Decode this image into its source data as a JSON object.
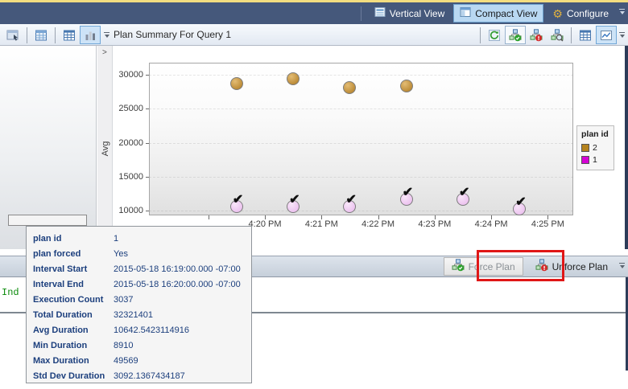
{
  "topbar": {
    "vertical_view_label": "Vertical View",
    "compact_view_label": "Compact View",
    "configure_label": "Configure"
  },
  "toolbar": {
    "title": "Plan Summary For Query 1",
    "left_icons": [
      "results-pane-icon",
      "grid-view-icon",
      "table-view-icon",
      "chart-view-icon"
    ],
    "right_icons": [
      "refresh-icon",
      "force-plan-icon",
      "unforce-plan-icon",
      "compare-plans-icon",
      "grid-results-icon",
      "chart-toggle-icon"
    ]
  },
  "chart_data": {
    "type": "scatter",
    "title": "Plan Summary For Query 1",
    "legend_title": "plan id",
    "legend_position": "right",
    "grid": false,
    "x_axis": {
      "unit": "time of day, minutes from 4:19 PM",
      "range": [
        -1.05,
        6.45
      ],
      "ticks": [
        {
          "pos": 0,
          "label": ""
        },
        {
          "pos": 1,
          "label": "4:20 PM"
        },
        {
          "pos": 2,
          "label": "4:21 PM"
        },
        {
          "pos": 3,
          "label": "4:22 PM"
        },
        {
          "pos": 4,
          "label": "4:23 PM"
        },
        {
          "pos": 5,
          "label": "4:24 PM"
        },
        {
          "pos": 6,
          "label": "4:25 PM"
        }
      ]
    },
    "y_axis": {
      "label": "Avg",
      "ticks": [
        10000,
        15000,
        20000,
        25000,
        30000
      ],
      "range": [
        9300,
        31800
      ]
    },
    "series": [
      {
        "name": "2",
        "plan_id": 2,
        "forced": false,
        "fill": "#bb8a35",
        "fill_light": "#e3bc74",
        "legend_color": "#b5831e",
        "points": [
          {
            "x": 0.5,
            "y": 28700
          },
          {
            "x": 1.5,
            "y": 29400
          },
          {
            "x": 2.5,
            "y": 28150
          },
          {
            "x": 3.5,
            "y": 28400
          }
        ]
      },
      {
        "name": "1",
        "plan_id": 1,
        "forced": true,
        "check_glyph": "✔",
        "fill": "#ecc2ef",
        "fill_light": "#f8e6f9",
        "legend_color": "#d404d4",
        "points": [
          {
            "x": 0.5,
            "y": 10642
          },
          {
            "x": 1.5,
            "y": 10600
          },
          {
            "x": 2.5,
            "y": 10650
          },
          {
            "x": 3.5,
            "y": 11700
          },
          {
            "x": 4.5,
            "y": 11650
          },
          {
            "x": 5.5,
            "y": 10200
          }
        ]
      }
    ]
  },
  "force_toolbar": {
    "force_label": "Force Plan",
    "unforce_label": "Unforce Plan"
  },
  "tooltip": {
    "rows": [
      {
        "label": "plan id",
        "value": "1"
      },
      {
        "label": "plan forced",
        "value": "Yes"
      },
      {
        "label": "Interval Start",
        "value": "2015-05-18 16:19:00.000 -07:00"
      },
      {
        "label": "Interval End",
        "value": "2015-05-18 16:20:00.000 -07:00"
      },
      {
        "label": "Execution Count",
        "value": "3037"
      },
      {
        "label": "Total Duration",
        "value": "32321401"
      },
      {
        "label": "Avg Duration",
        "value": "10642.5423114916"
      },
      {
        "label": "Min Duration",
        "value": "8910"
      },
      {
        "label": "Max Duration",
        "value": "49569"
      },
      {
        "label": "Std Dev Duration",
        "value": "3092.1367434187"
      }
    ]
  },
  "editor": {
    "visible_text": "Ind"
  },
  "colors": {
    "topbar": "#45587b",
    "topbar_accent_line": "#f3dd80",
    "selected_button_bg": "#b9d8f2",
    "annotation_red": "#e01717",
    "plan2_brown": "#b5831e",
    "plan1_magenta": "#d404d4",
    "tooltip_text": "#1c3f7d",
    "code_green": "#0a8a0a"
  }
}
